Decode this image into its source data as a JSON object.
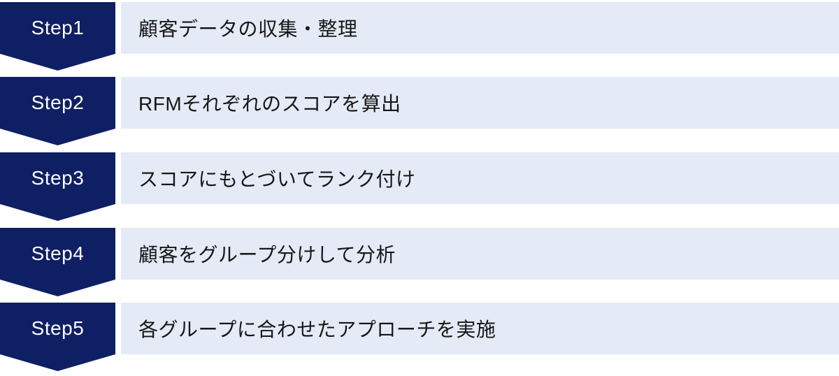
{
  "colors": {
    "chevron_navy": "#0f1f63",
    "bar_lavender": "#e4eaf6",
    "step_label_text": "#ffffff",
    "description_text": "#161616",
    "background": "#ffffff"
  },
  "steps": [
    {
      "label": "Step1",
      "text": "顧客データの収集・整理"
    },
    {
      "label": "Step2",
      "text": "RFMそれぞれのスコアを算出"
    },
    {
      "label": "Step3",
      "text": "スコアにもとづいてランク付け"
    },
    {
      "label": "Step4",
      "text": "顧客をグループ分けして分析"
    },
    {
      "label": "Step5",
      "text": "各グループに合わせたアプローチを実施"
    }
  ]
}
